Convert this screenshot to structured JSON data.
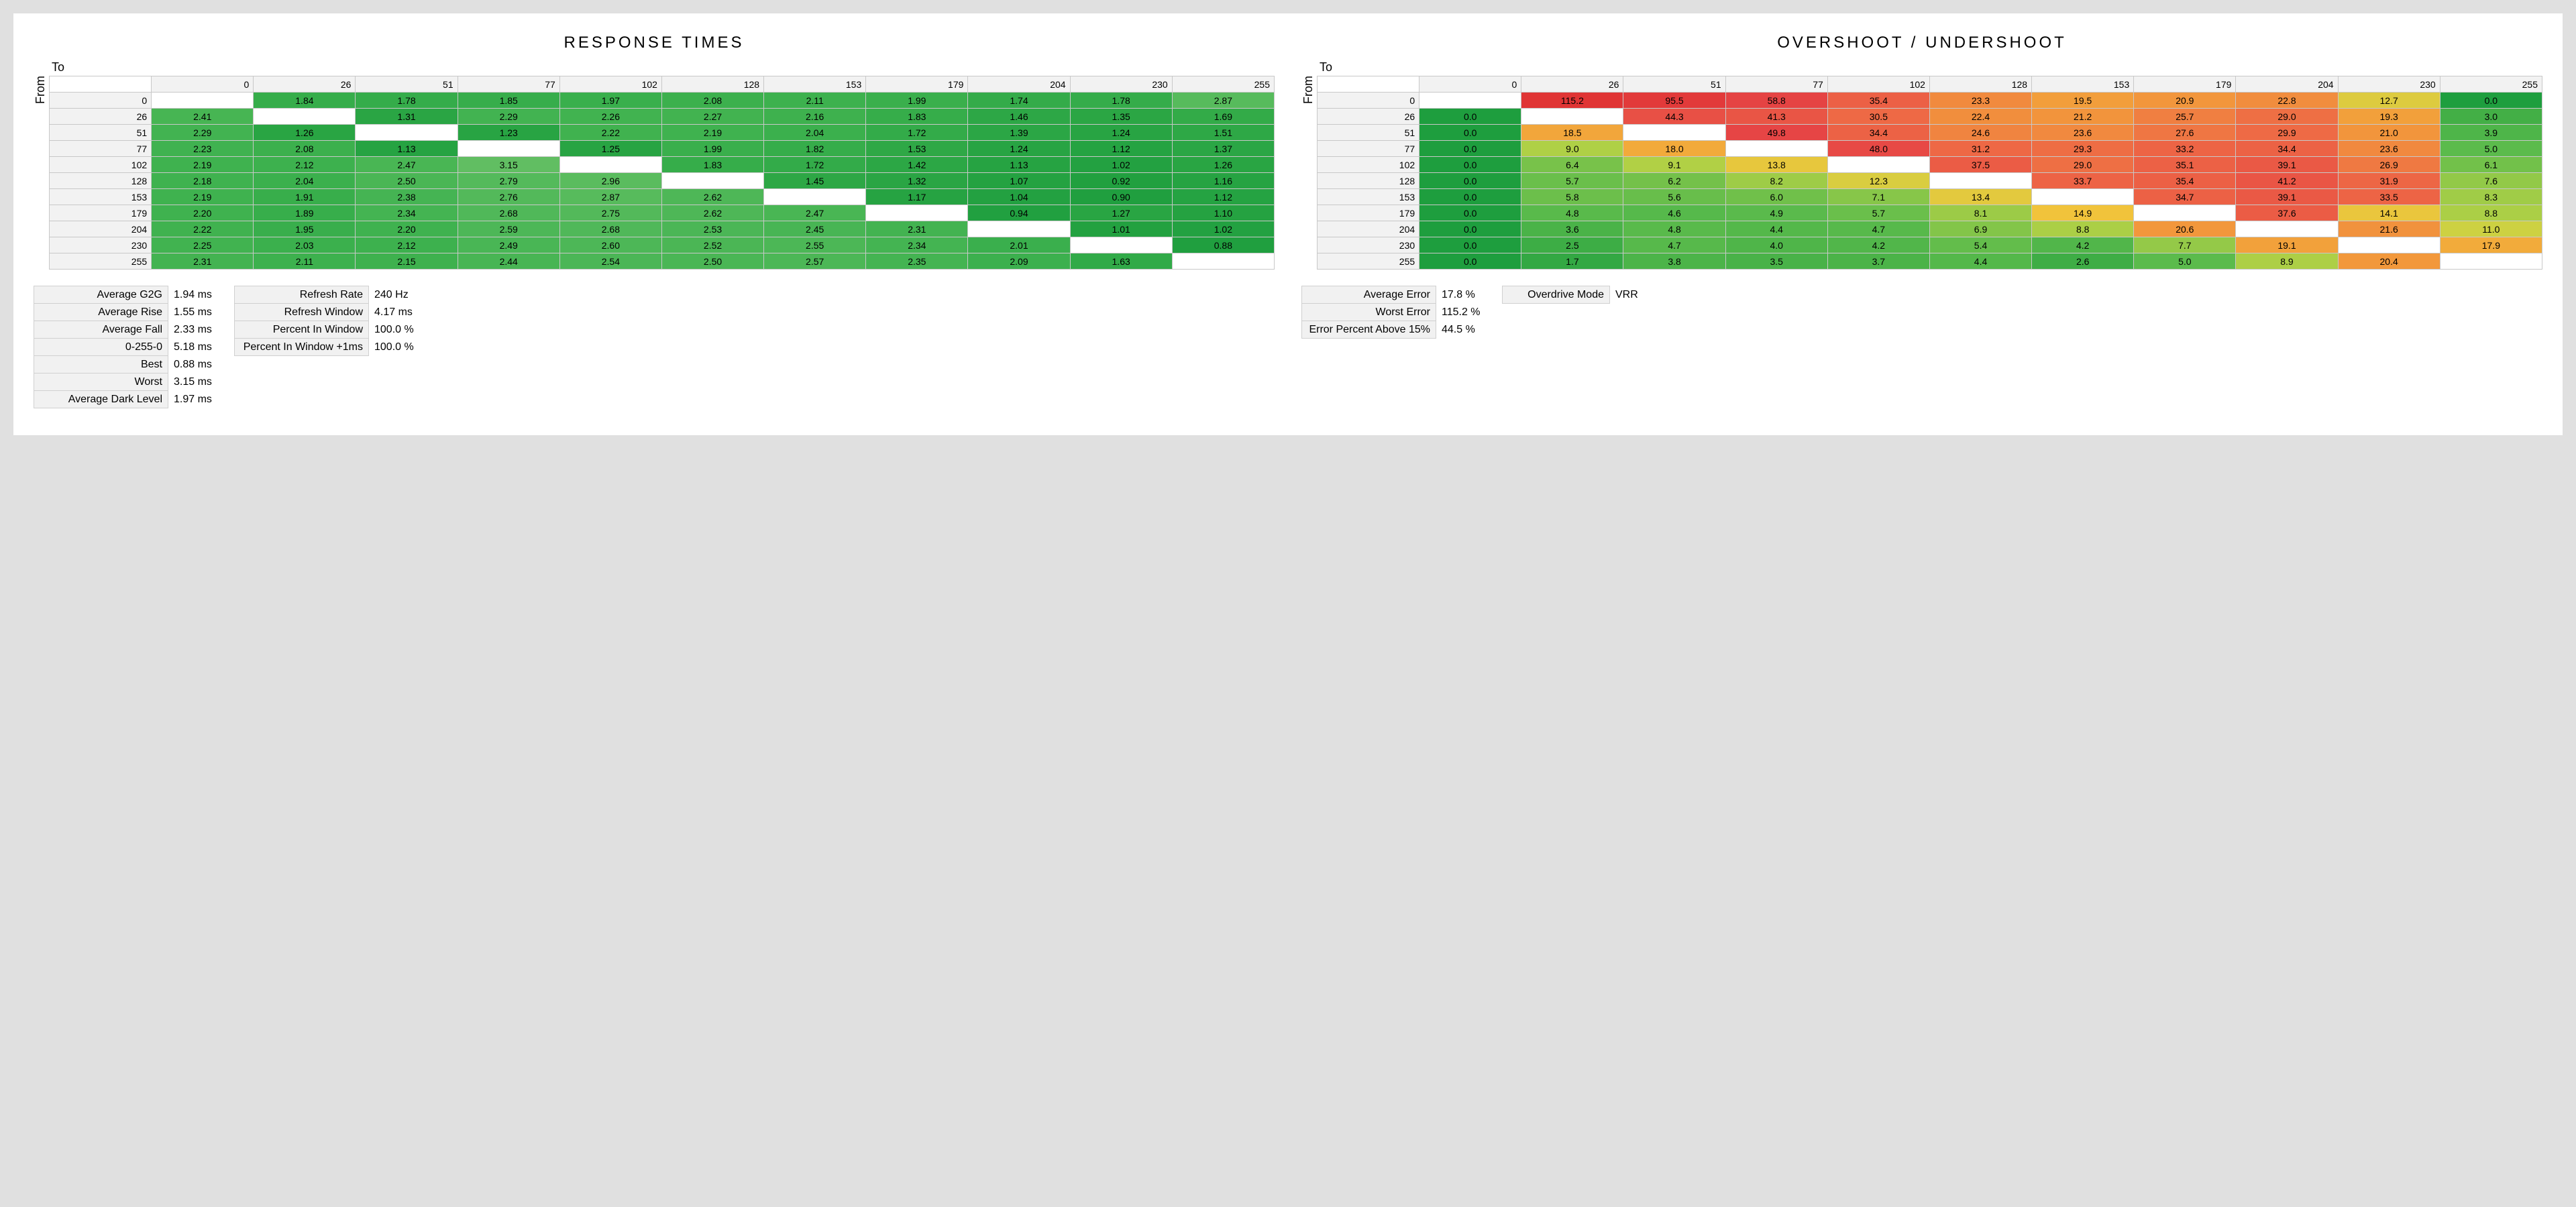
{
  "page_background": "#e0e0e0",
  "card_background": "#ffffff",
  "gridline_color": "#c8c8c8",
  "header_bg": "#f2f2f2",
  "levels": [
    0,
    26,
    51,
    77,
    102,
    128,
    153,
    179,
    204,
    230,
    255
  ],
  "axis_labels": {
    "to": "To",
    "from": "From"
  },
  "response": {
    "title": "RESPONSE TIMES",
    "unit": "ms",
    "color_best": "#1e9e3e",
    "color_mid": "#5ab85e",
    "color_soft": "#8dcf78",
    "grid": [
      [
        null,
        1.84,
        1.78,
        1.85,
        1.97,
        2.08,
        2.11,
        1.99,
        1.74,
        1.78,
        2.87
      ],
      [
        2.41,
        null,
        1.31,
        2.29,
        2.26,
        2.27,
        2.16,
        1.83,
        1.46,
        1.35,
        1.69
      ],
      [
        2.29,
        1.26,
        null,
        1.23,
        2.22,
        2.19,
        2.04,
        1.72,
        1.39,
        1.24,
        1.51
      ],
      [
        2.23,
        2.08,
        1.13,
        null,
        1.25,
        1.99,
        1.82,
        1.53,
        1.24,
        1.12,
        1.37
      ],
      [
        2.19,
        2.12,
        2.47,
        3.15,
        null,
        1.83,
        1.72,
        1.42,
        1.13,
        1.02,
        1.26
      ],
      [
        2.18,
        2.04,
        2.5,
        2.79,
        2.96,
        null,
        1.45,
        1.32,
        1.07,
        0.92,
        1.16
      ],
      [
        2.19,
        1.91,
        2.38,
        2.76,
        2.87,
        2.62,
        null,
        1.17,
        1.04,
        0.9,
        1.12
      ],
      [
        2.2,
        1.89,
        2.34,
        2.68,
        2.75,
        2.62,
        2.47,
        null,
        0.94,
        1.27,
        1.1
      ],
      [
        2.22,
        1.95,
        2.2,
        2.59,
        2.68,
        2.53,
        2.45,
        2.31,
        null,
        1.01,
        1.02
      ],
      [
        2.25,
        2.03,
        2.12,
        2.49,
        2.6,
        2.52,
        2.55,
        2.34,
        2.01,
        null,
        0.88
      ],
      [
        2.31,
        2.11,
        2.15,
        2.44,
        2.54,
        2.5,
        2.57,
        2.35,
        2.09,
        1.63,
        null
      ]
    ],
    "stats_left": [
      {
        "k": "Average G2G",
        "v": "1.94 ms"
      },
      {
        "k": "Average Rise",
        "v": "1.55 ms"
      },
      {
        "k": "Average Fall",
        "v": "2.33 ms"
      },
      {
        "k": "0-255-0",
        "v": "5.18 ms"
      },
      {
        "k": "Best",
        "v": "0.88 ms"
      },
      {
        "k": "Worst",
        "v": "3.15 ms"
      },
      {
        "k": "Average Dark Level",
        "v": "1.97 ms"
      }
    ],
    "stats_right": [
      {
        "k": "Refresh Rate",
        "v": "240 Hz"
      },
      {
        "k": "Refresh Window",
        "v": "4.17 ms"
      },
      {
        "k": "Percent In Window",
        "v": "100.0 %"
      },
      {
        "k": "Percent In Window +1ms",
        "v": "100.0 %"
      }
    ]
  },
  "overshoot": {
    "title": "OVERSHOOT / UNDERSHOOT",
    "unit": "%",
    "ramp": {
      "stops": [
        {
          "at": 0,
          "color": "#1e9e3e"
        },
        {
          "at": 5,
          "color": "#5bbb4c"
        },
        {
          "at": 10,
          "color": "#c4d544"
        },
        {
          "at": 15,
          "color": "#f2c33b"
        },
        {
          "at": 20,
          "color": "#f29a3b"
        },
        {
          "at": 30,
          "color": "#ee6a45"
        },
        {
          "at": 50,
          "color": "#e64545"
        },
        {
          "at": 120,
          "color": "#e03434"
        }
      ]
    },
    "grid": [
      [
        null,
        115.2,
        95.5,
        58.8,
        35.4,
        23.3,
        19.5,
        20.9,
        22.8,
        12.7,
        0.0
      ],
      [
        0.0,
        null,
        44.3,
        41.3,
        30.5,
        22.4,
        21.2,
        25.7,
        29.0,
        19.3,
        3.0
      ],
      [
        0.0,
        18.5,
        null,
        49.8,
        34.4,
        24.6,
        23.6,
        27.6,
        29.9,
        21.0,
        3.9
      ],
      [
        0.0,
        9.0,
        18.0,
        null,
        48.0,
        31.2,
        29.3,
        33.2,
        34.4,
        23.6,
        5.0
      ],
      [
        0.0,
        6.4,
        9.1,
        13.8,
        null,
        37.5,
        29.0,
        35.1,
        39.1,
        26.9,
        6.1
      ],
      [
        0.0,
        5.7,
        6.2,
        8.2,
        12.3,
        null,
        33.7,
        35.4,
        41.2,
        31.9,
        7.6
      ],
      [
        0.0,
        5.8,
        5.6,
        6.0,
        7.1,
        13.4,
        null,
        34.7,
        39.1,
        33.5,
        8.3
      ],
      [
        0.0,
        4.8,
        4.6,
        4.9,
        5.7,
        8.1,
        14.9,
        null,
        37.6,
        14.1,
        8.8
      ],
      [
        0.0,
        3.6,
        4.8,
        4.4,
        4.7,
        6.9,
        8.8,
        20.6,
        null,
        21.6,
        11.0
      ],
      [
        0.0,
        2.5,
        4.7,
        4.0,
        4.2,
        5.4,
        4.2,
        7.7,
        19.1,
        null,
        17.9
      ],
      [
        0.0,
        1.7,
        3.8,
        3.5,
        3.7,
        4.4,
        2.6,
        5.0,
        8.9,
        20.4,
        null
      ]
    ],
    "stats_left": [
      {
        "k": "Average Error",
        "v": "17.8 %"
      },
      {
        "k": "Worst Error",
        "v": "115.2 %"
      },
      {
        "k": "Error Percent Above 15%",
        "v": "44.5 %"
      }
    ],
    "stats_right": [
      {
        "k": "Overdrive Mode",
        "v": "VRR"
      }
    ]
  }
}
